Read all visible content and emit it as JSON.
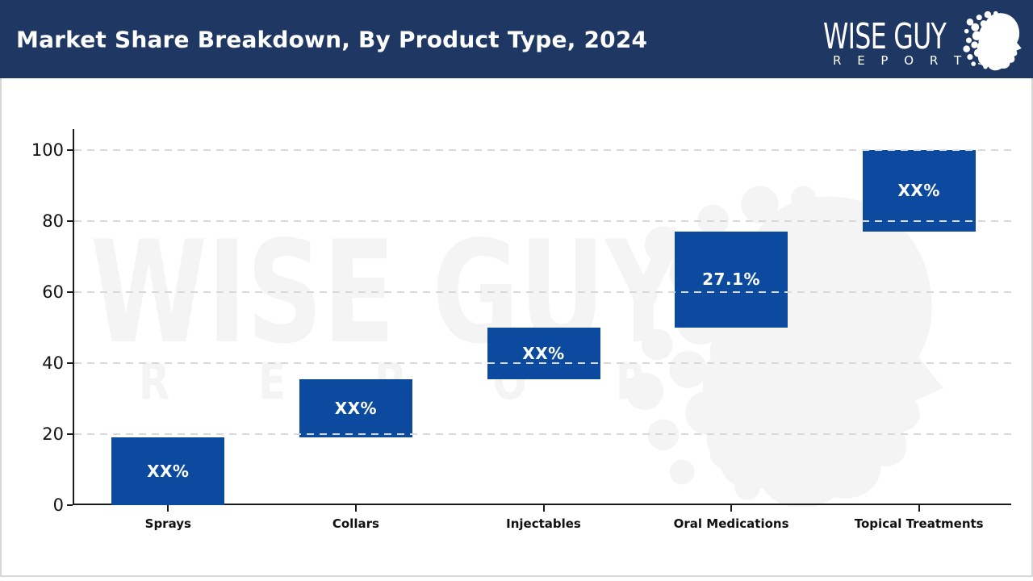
{
  "header": {
    "title": "Market Share Breakdown, By Product Type, 2024",
    "logo": {
      "line1": "WISE GUY",
      "line2": "R E P O R T S"
    }
  },
  "watermark": {
    "line1": "WISE GUY",
    "line2": "R E P O R T S"
  },
  "colors": {
    "header_bg": "#1f3763",
    "bar": "#0b4a9e",
    "grid": "#d9d9d9",
    "axis": "#1a1a1a",
    "watermark": "#f4f4f4",
    "bar_label": "#ffffff",
    "title_text": "#ffffff"
  },
  "chart_data": {
    "type": "bar",
    "subtype": "waterfall-floating-bars",
    "title": "Market Share Breakdown, By Product Type, 2024",
    "xlabel": "",
    "ylabel": "",
    "ylim": [
      0,
      105
    ],
    "yticks": [
      0,
      20,
      40,
      60,
      80,
      100
    ],
    "grid": "horizontal-dashed",
    "categories": [
      "Sprays",
      "Collars",
      "Injectables",
      "Oral Medications",
      "Topical Treatments"
    ],
    "segments": [
      {
        "category": "Sprays",
        "start": 0,
        "end": 19,
        "label": "XX%"
      },
      {
        "category": "Collars",
        "start": 19,
        "end": 35.5,
        "label": "XX%"
      },
      {
        "category": "Injectables",
        "start": 35.5,
        "end": 50,
        "label": "XX%"
      },
      {
        "category": "Oral Medications",
        "start": 50,
        "end": 77.1,
        "label": "27.1%"
      },
      {
        "category": "Topical Treatments",
        "start": 77.1,
        "end": 100,
        "label": "XX%"
      }
    ]
  }
}
